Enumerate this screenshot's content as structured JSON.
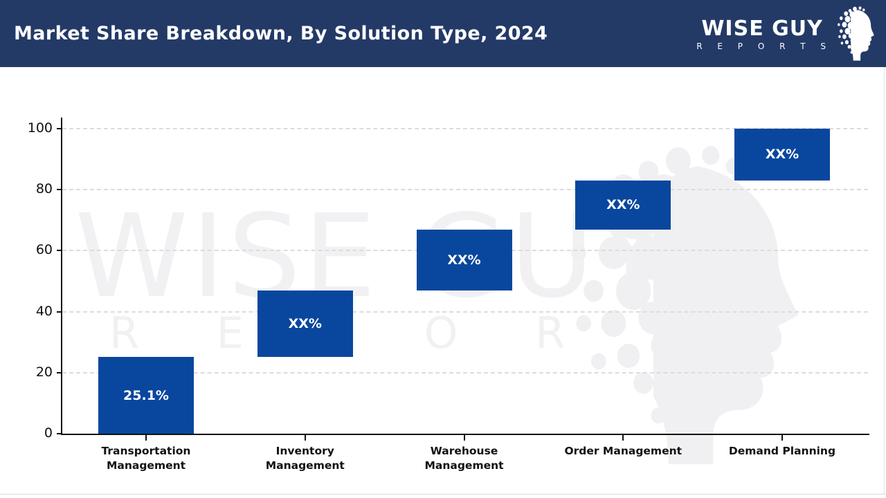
{
  "header": {
    "title": "Market Share Breakdown, By Solution Type, 2024",
    "logo": {
      "name": "WISE GUY",
      "subtitle": "R E P O R T S"
    }
  },
  "watermark": {
    "line1": "WISE GUY",
    "line2": "R E P O R T S"
  },
  "chart_data": {
    "type": "bar",
    "subtype": "waterfall",
    "title": "Market Share Breakdown, By Solution Type, 2024",
    "categories": [
      "Transportation Management",
      "Inventory Management",
      "Warehouse Management",
      "Order Management",
      "Demand Planning"
    ],
    "category_label_lines": [
      [
        "Transportation",
        "Management"
      ],
      [
        "Inventory",
        "Management"
      ],
      [
        "Warehouse",
        "Management"
      ],
      [
        "Order Management"
      ],
      [
        "Demand Planning"
      ]
    ],
    "segments": [
      {
        "start": 0,
        "end": 25.1,
        "label": "25.1%"
      },
      {
        "start": 25.1,
        "end": 47,
        "label": "XX%"
      },
      {
        "start": 47,
        "end": 67,
        "label": "XX%"
      },
      {
        "start": 67,
        "end": 83,
        "label": "XX%"
      },
      {
        "start": 83,
        "end": 100,
        "label": "XX%"
      }
    ],
    "yticks": [
      0,
      20,
      40,
      60,
      80,
      100
    ],
    "ylim": [
      0,
      105
    ],
    "xlabel": "",
    "ylabel": "",
    "grid": {
      "horizontal": true,
      "style": "dashed"
    },
    "legend": "none",
    "colors": {
      "bar": "#09479E",
      "bar_label": "#FFFFFF",
      "grid": "#DCDCDC",
      "axis": "#111111",
      "header_bg": "#233A67",
      "watermark": "#F1F1F3"
    }
  }
}
